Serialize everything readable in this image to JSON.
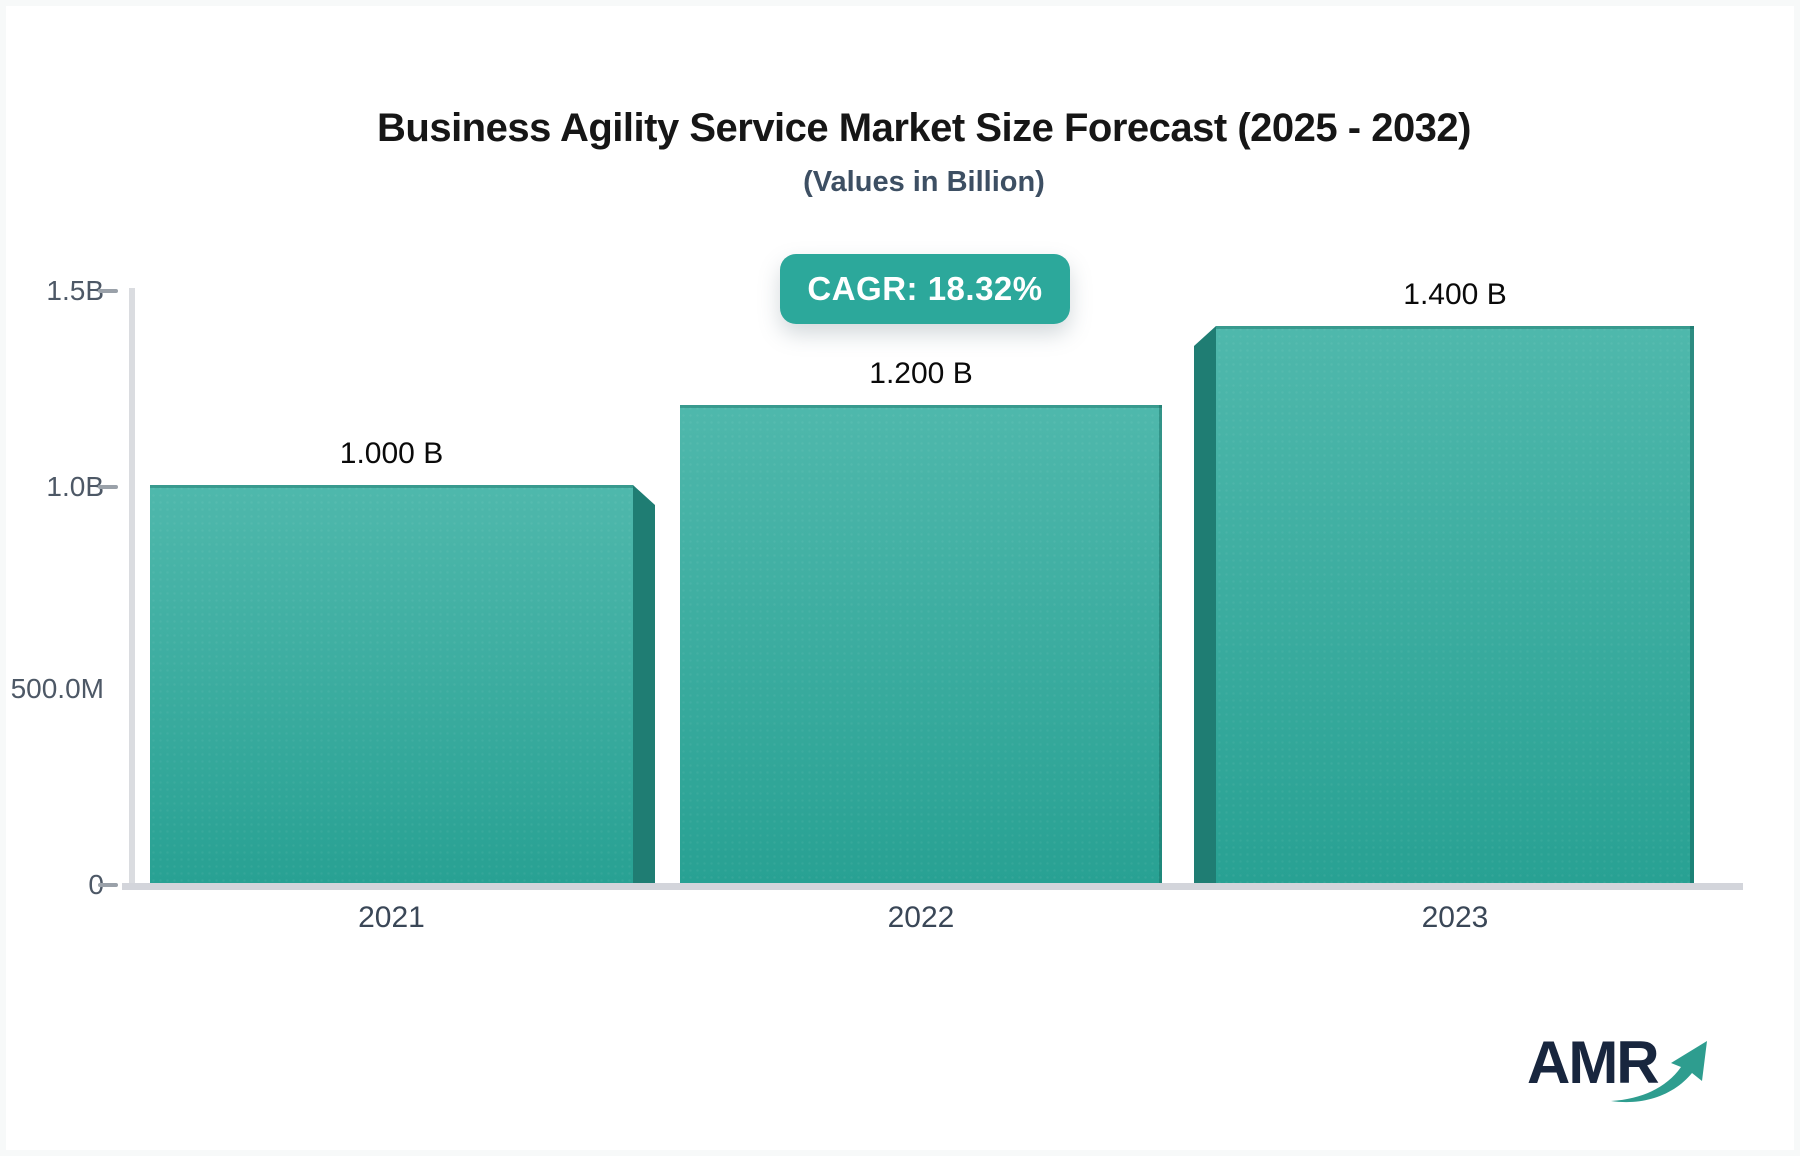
{
  "header": {
    "title": "Business Agility Service Market Size Forecast (2025 - 2032)",
    "subtitle": "(Values in Billion)"
  },
  "badge": {
    "label": "CAGR: 18.32%"
  },
  "chart_data": {
    "type": "bar",
    "title": "Business Agility Service Market Size Forecast (2025 - 2032)",
    "subtitle": "(Values in Billion)",
    "unit": "Billion",
    "categories": [
      "2021",
      "2022",
      "2023"
    ],
    "values": [
      1.0,
      1.2,
      1.4
    ],
    "value_labels": [
      "1.000 B",
      "1.200 B",
      "1.400 B"
    ],
    "cagr_percent": 18.32,
    "ylim": [
      0,
      1.5
    ],
    "y_axis_ticks": [
      {
        "label": "1.5B",
        "value": 1.5,
        "has_tick_mark": true
      },
      {
        "label": "1.0B",
        "value": 1.0,
        "has_tick_mark": true
      },
      {
        "label": "500.0M",
        "value": 0.5,
        "has_tick_mark": false
      },
      {
        "label": "0",
        "value": 0,
        "has_tick_mark": true
      }
    ],
    "grid": false,
    "legend": false,
    "bar_style": "3d-beveled"
  },
  "logo": {
    "text": "AMR",
    "icon": "growth-arrow-icon"
  },
  "colors": {
    "bar_gradient_top": "#4FB8AC",
    "bar_gradient_bottom": "#28A193",
    "bar_side_shade": "#1F7D73",
    "badge_background": "#2CA89B",
    "badge_text": "#FFFFFF",
    "axis_line": "#D7D9DE",
    "tick_mark": "#9AA1A9",
    "title_text": "#161616",
    "subtitle_text": "#3D4F63",
    "axis_label_text": "#4D5866",
    "value_label_text": "#0A0A0A",
    "logo_text": "#18263E",
    "logo_arrow": "#2E9D8F"
  }
}
